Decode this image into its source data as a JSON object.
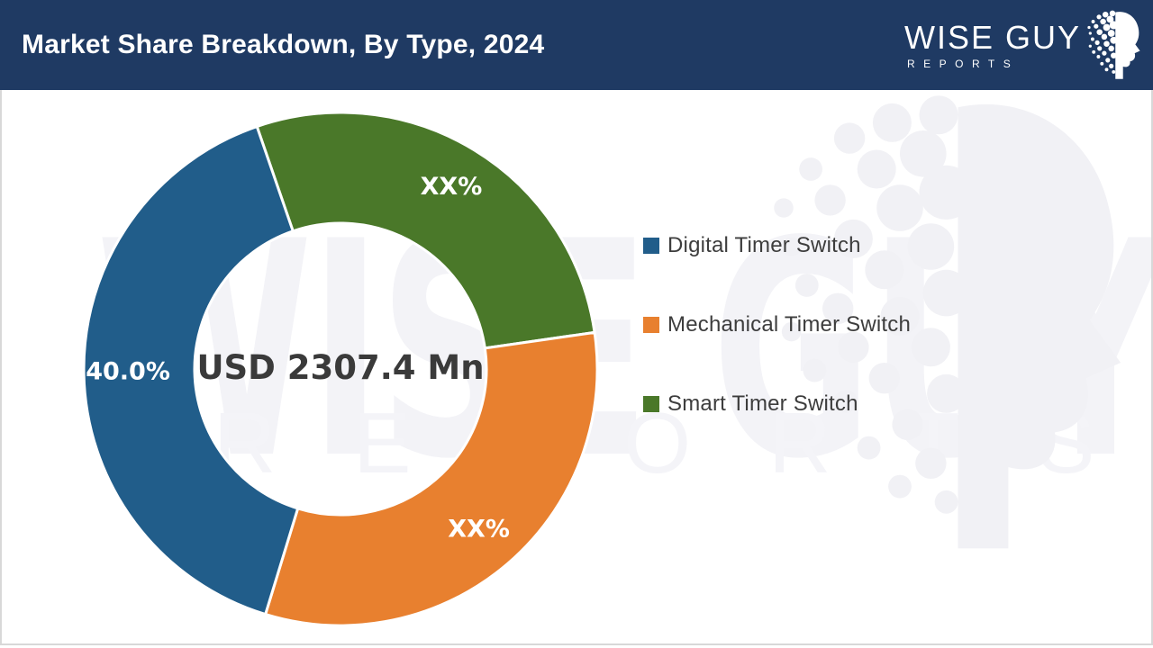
{
  "header": {
    "title": "Market Share Breakdown, By Type, 2024",
    "logo": {
      "name": "WISE GUY",
      "sub": "REPORTS"
    }
  },
  "watermark": {
    "line1": "WISE GUY",
    "line2": "REPORTS"
  },
  "chart_data": {
    "type": "pie",
    "subtype": "donut",
    "title": "Market Share Breakdown, By Type, 2024",
    "center_label": "USD 2307.4 Mn",
    "units": "percent market share",
    "start_angle_deg": -19,
    "outer_radius": 285,
    "inner_radius": 162,
    "label_radius": 236,
    "slices": [
      {
        "name": "Smart Timer Switch",
        "label": "XX%",
        "value_pct": 28.0,
        "color": "#4A7829"
      },
      {
        "name": "Mechanical Timer Switch",
        "label": "XX%",
        "value_pct": 32.0,
        "color": "#E8802F"
      },
      {
        "name": "Digital Timer Switch",
        "label": "40.0%",
        "value_pct": 40.0,
        "color": "#215D8A"
      }
    ],
    "legend": [
      {
        "label": "Digital Timer Switch",
        "color": "#215D8A"
      },
      {
        "label": "Mechanical Timer Switch",
        "color": "#E8802F"
      },
      {
        "label": "Smart Timer Switch",
        "color": "#4A7829"
      }
    ],
    "legend_position": "right"
  },
  "colors": {
    "header_bg": "#1F3A63",
    "center_text": "#3A3A3A",
    "watermark": "#F3F3F7",
    "card_border": "#D8D8D8",
    "slice_separator": "#FFFFFF"
  }
}
